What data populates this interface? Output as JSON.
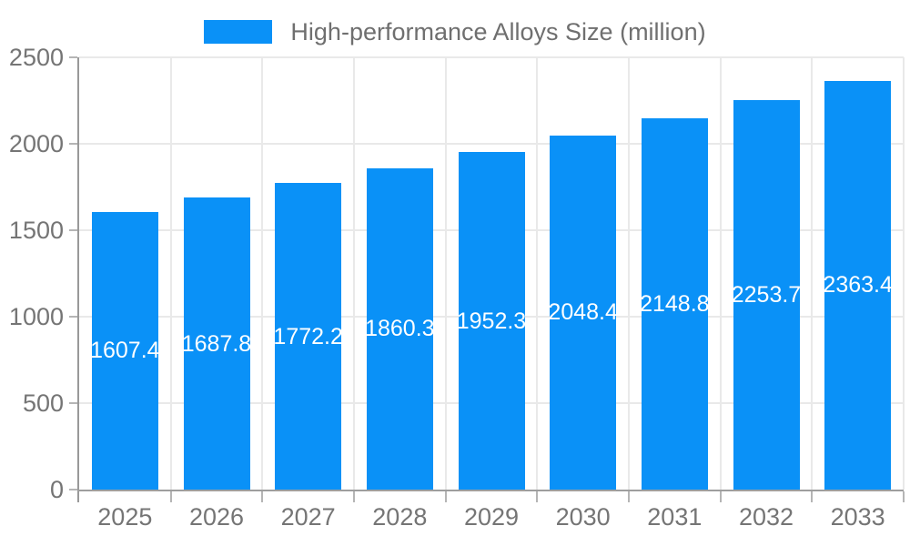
{
  "chart_data": {
    "type": "bar",
    "title": "",
    "legend": [
      "High-performance Alloys Size (million)"
    ],
    "legend_position": "top-center",
    "categories": [
      "2025",
      "2026",
      "2027",
      "2028",
      "2029",
      "2030",
      "2031",
      "2032",
      "2033"
    ],
    "values": [
      1607.4,
      1687.8,
      1772.2,
      1860.3,
      1952.3,
      2048.4,
      2148.8,
      2253.7,
      2363.4
    ],
    "value_labels": [
      "1607.4",
      "1687.8",
      "1772.2",
      "1860.3",
      "1952.3",
      "2048.4",
      "2148.8",
      "2253.7",
      "2363.4"
    ],
    "xlabel": "",
    "ylabel": "",
    "ylim": [
      0,
      2500
    ],
    "yticks": [
      0,
      500,
      1000,
      1500,
      2000,
      2500
    ],
    "grid": true,
    "colors": {
      "bar": "#0a91f7",
      "bar_value_text": "#ffffff",
      "axis_text": "#757575",
      "gridline": "#e9e9e9",
      "axis_line": "#9e9e9e"
    }
  }
}
